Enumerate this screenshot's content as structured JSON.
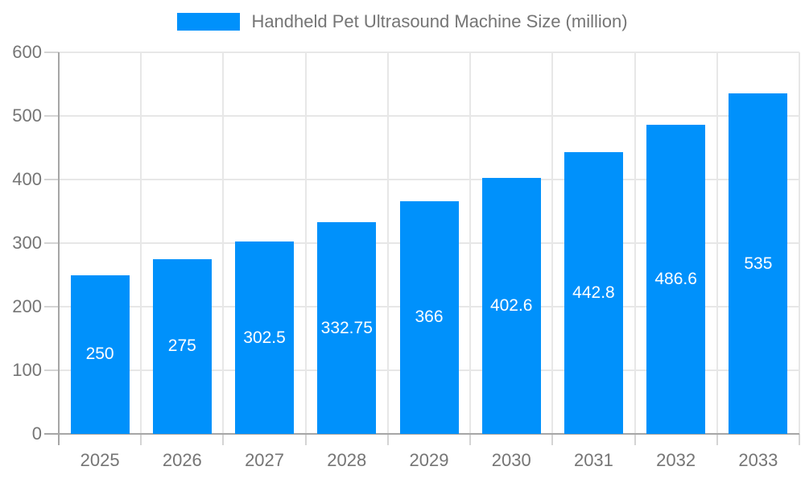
{
  "legend": {
    "series_label": "Handheld Pet Ultrasound Machine Size (million)"
  },
  "chart_data": {
    "type": "bar",
    "title": "Handheld Pet Ultrasound Machine Size (million)",
    "xlabel": "",
    "ylabel": "",
    "categories": [
      "2025",
      "2026",
      "2027",
      "2028",
      "2029",
      "2030",
      "2031",
      "2032",
      "2033"
    ],
    "values": [
      250,
      275,
      302.5,
      332.75,
      366,
      402.6,
      442.8,
      486.6,
      535
    ],
    "value_labels": [
      "250",
      "275",
      "302.5",
      "332.75",
      "366",
      "402.6",
      "442.8",
      "486.6",
      "535"
    ],
    "ylim": [
      0,
      600
    ],
    "yticks": [
      0,
      100,
      200,
      300,
      400,
      500,
      600
    ],
    "grid": true,
    "legend_position": "top",
    "colors": {
      "bar": "#0091fb",
      "grid": "#e7e7e7",
      "axis": "#a6a6a6",
      "tick": "#d4d4d4",
      "label_text": "#757575",
      "value_text": "#ffffff",
      "background": "#ffffff"
    }
  }
}
